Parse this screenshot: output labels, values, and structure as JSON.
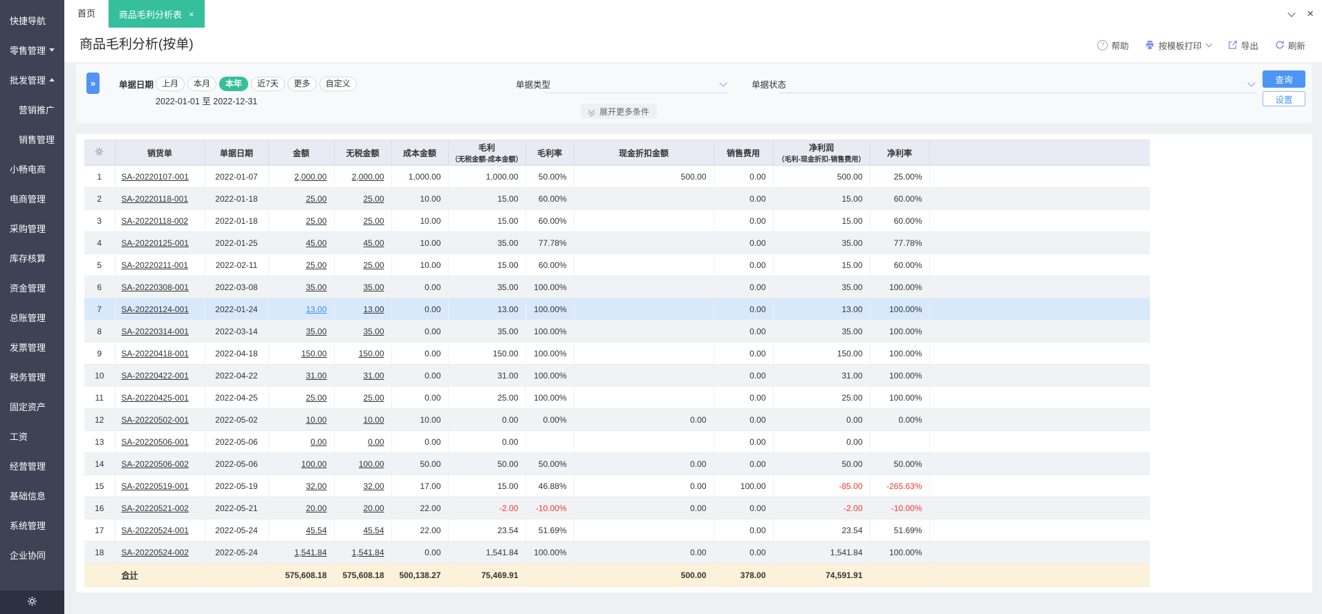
{
  "sidebar": {
    "items": [
      {
        "label": "快捷导航"
      },
      {
        "label": "零售管理",
        "arrow": "down"
      },
      {
        "label": "批发管理",
        "arrow": "up"
      },
      {
        "label": "营销推广",
        "sub": true
      },
      {
        "label": "销售管理",
        "sub": true
      },
      {
        "label": "小畅电商"
      },
      {
        "label": "电商管理"
      },
      {
        "label": "采购管理"
      },
      {
        "label": "库存核算"
      },
      {
        "label": "资金管理"
      },
      {
        "label": "总账管理"
      },
      {
        "label": "发票管理"
      },
      {
        "label": "税务管理"
      },
      {
        "label": "固定资产"
      },
      {
        "label": "工资"
      },
      {
        "label": "经营管理"
      },
      {
        "label": "基础信息"
      },
      {
        "label": "系统管理"
      },
      {
        "label": "企业协同"
      }
    ]
  },
  "tabs": {
    "home": "首页",
    "active": "商品毛利分析表"
  },
  "page": {
    "title": "商品毛利分析(按单)"
  },
  "actions": {
    "help": "帮助",
    "print": "按模板打印",
    "export": "导出",
    "refresh": "刷新"
  },
  "filters": {
    "date_label": "单据日期",
    "date_options": [
      "上月",
      "本月",
      "本年",
      "近7天",
      "更多",
      "自定义"
    ],
    "date_selected": "本年",
    "date_range": "2022-01-01 至 2022-12-31",
    "type_label": "单据类型",
    "status_label": "单据状态",
    "expand_more": "展开更多条件",
    "query_button": "查询",
    "settings_button": "设置"
  },
  "colors": {
    "accent_green": "#35bf9c",
    "accent_blue": "#4b95f4",
    "negative_red": "#f0372e",
    "selected_row": "#d8e9fc",
    "total_row_bg": "#fcf2d9"
  },
  "table": {
    "columns": [
      {
        "title": "",
        "sub": ""
      },
      {
        "title": "销货单",
        "sub": ""
      },
      {
        "title": "单据日期",
        "sub": ""
      },
      {
        "title": "金额",
        "sub": ""
      },
      {
        "title": "无税金额",
        "sub": ""
      },
      {
        "title": "成本金额",
        "sub": ""
      },
      {
        "title": "毛利",
        "sub": "（无税金额-成本金额）"
      },
      {
        "title": "毛利率",
        "sub": ""
      },
      {
        "title": "现金折扣金额",
        "sub": ""
      },
      {
        "title": "销售费用",
        "sub": ""
      },
      {
        "title": "净利润",
        "sub": "（毛利-现金折扣-销售费用）"
      },
      {
        "title": "净利率",
        "sub": ""
      }
    ],
    "rows": [
      {
        "no": "1",
        "order": "SA-20220107-001",
        "date": "2022-01-07",
        "amount": "2,000.00",
        "no_tax": "2,000.00",
        "cost": "1,000.00",
        "gross": "1,000.00",
        "gross_rate": "50.00%",
        "discount": "500.00",
        "expense": "0.00",
        "net": "500.00",
        "net_rate": "25.00%",
        "selected": false
      },
      {
        "no": "2",
        "order": "SA-20220118-001",
        "date": "2022-01-18",
        "amount": "25.00",
        "no_tax": "25.00",
        "cost": "10.00",
        "gross": "15.00",
        "gross_rate": "60.00%",
        "discount": "",
        "expense": "0.00",
        "net": "15.00",
        "net_rate": "60.00%",
        "selected": false
      },
      {
        "no": "3",
        "order": "SA-20220118-002",
        "date": "2022-01-18",
        "amount": "25.00",
        "no_tax": "25.00",
        "cost": "10.00",
        "gross": "15.00",
        "gross_rate": "60.00%",
        "discount": "",
        "expense": "0.00",
        "net": "15.00",
        "net_rate": "60.00%",
        "selected": false
      },
      {
        "no": "4",
        "order": "SA-20220125-001",
        "date": "2022-01-25",
        "amount": "45.00",
        "no_tax": "45.00",
        "cost": "10.00",
        "gross": "35.00",
        "gross_rate": "77.78%",
        "discount": "",
        "expense": "0.00",
        "net": "35.00",
        "net_rate": "77.78%",
        "selected": false
      },
      {
        "no": "5",
        "order": "SA-20220211-001",
        "date": "2022-02-11",
        "amount": "25.00",
        "no_tax": "25.00",
        "cost": "10.00",
        "gross": "15.00",
        "gross_rate": "60.00%",
        "discount": "",
        "expense": "0.00",
        "net": "15.00",
        "net_rate": "60.00%",
        "selected": false
      },
      {
        "no": "6",
        "order": "SA-20220308-001",
        "date": "2022-03-08",
        "amount": "35.00",
        "no_tax": "35.00",
        "cost": "0.00",
        "gross": "35.00",
        "gross_rate": "100.00%",
        "discount": "",
        "expense": "0.00",
        "net": "35.00",
        "net_rate": "100.00%",
        "selected": false
      },
      {
        "no": "7",
        "order": "SA-20220124-001",
        "date": "2022-01-24",
        "amount": "13.00",
        "no_tax": "13.00",
        "cost": "0.00",
        "gross": "13.00",
        "gross_rate": "100.00%",
        "discount": "",
        "expense": "0.00",
        "net": "13.00",
        "net_rate": "100.00%",
        "selected": true
      },
      {
        "no": "8",
        "order": "SA-20220314-001",
        "date": "2022-03-14",
        "amount": "35.00",
        "no_tax": "35.00",
        "cost": "0.00",
        "gross": "35.00",
        "gross_rate": "100.00%",
        "discount": "",
        "expense": "0.00",
        "net": "35.00",
        "net_rate": "100.00%",
        "selected": false
      },
      {
        "no": "9",
        "order": "SA-20220418-001",
        "date": "2022-04-18",
        "amount": "150.00",
        "no_tax": "150.00",
        "cost": "0.00",
        "gross": "150.00",
        "gross_rate": "100.00%",
        "discount": "",
        "expense": "0.00",
        "net": "150.00",
        "net_rate": "100.00%",
        "selected": false
      },
      {
        "no": "10",
        "order": "SA-20220422-001",
        "date": "2022-04-22",
        "amount": "31.00",
        "no_tax": "31.00",
        "cost": "0.00",
        "gross": "31.00",
        "gross_rate": "100.00%",
        "discount": "",
        "expense": "0.00",
        "net": "31.00",
        "net_rate": "100.00%",
        "selected": false
      },
      {
        "no": "11",
        "order": "SA-20220425-001",
        "date": "2022-04-25",
        "amount": "25.00",
        "no_tax": "25.00",
        "cost": "0.00",
        "gross": "25.00",
        "gross_rate": "100.00%",
        "discount": "",
        "expense": "0.00",
        "net": "25.00",
        "net_rate": "100.00%",
        "selected": false
      },
      {
        "no": "12",
        "order": "SA-20220502-001",
        "date": "2022-05-02",
        "amount": "10.00",
        "no_tax": "10.00",
        "cost": "10.00",
        "gross": "0.00",
        "gross_rate": "0.00%",
        "discount": "0.00",
        "expense": "0.00",
        "net": "0.00",
        "net_rate": "0.00%",
        "selected": false
      },
      {
        "no": "13",
        "order": "SA-20220506-001",
        "date": "2022-05-06",
        "amount": "0.00",
        "no_tax": "0.00",
        "cost": "0.00",
        "gross": "0.00",
        "gross_rate": "",
        "discount": "",
        "expense": "0.00",
        "net": "0.00",
        "net_rate": "",
        "selected": false
      },
      {
        "no": "14",
        "order": "SA-20220506-002",
        "date": "2022-05-06",
        "amount": "100.00",
        "no_tax": "100.00",
        "cost": "50.00",
        "gross": "50.00",
        "gross_rate": "50.00%",
        "discount": "0.00",
        "expense": "0.00",
        "net": "50.00",
        "net_rate": "50.00%",
        "selected": false
      },
      {
        "no": "15",
        "order": "SA-20220519-001",
        "date": "2022-05-19",
        "amount": "32.00",
        "no_tax": "32.00",
        "cost": "17.00",
        "gross": "15.00",
        "gross_rate": "46.88%",
        "discount": "0.00",
        "expense": "100.00",
        "net": "-85.00",
        "net_rate": "-265.63%",
        "selected": false
      },
      {
        "no": "16",
        "order": "SA-20220521-002",
        "date": "2022-05-21",
        "amount": "20.00",
        "no_tax": "20.00",
        "cost": "22.00",
        "gross": "-2.00",
        "gross_rate": "-10.00%",
        "discount": "0.00",
        "expense": "0.00",
        "net": "-2.00",
        "net_rate": "-10.00%",
        "selected": false
      },
      {
        "no": "17",
        "order": "SA-20220524-001",
        "date": "2022-05-24",
        "amount": "45.54",
        "no_tax": "45.54",
        "cost": "22.00",
        "gross": "23.54",
        "gross_rate": "51.69%",
        "discount": "",
        "expense": "0.00",
        "net": "23.54",
        "net_rate": "51.69%",
        "selected": false
      },
      {
        "no": "18",
        "order": "SA-20220524-002",
        "date": "2022-05-24",
        "amount": "1,541.84",
        "no_tax": "1,541.84",
        "cost": "0.00",
        "gross": "1,541.84",
        "gross_rate": "100.00%",
        "discount": "0.00",
        "expense": "0.00",
        "net": "1,541.84",
        "net_rate": "100.00%",
        "selected": false
      }
    ],
    "total": {
      "label": "合计",
      "amount": "575,608.18",
      "no_tax": "575,608.18",
      "cost": "500,138.27",
      "gross": "75,469.91",
      "gross_rate": "",
      "discount": "500.00",
      "expense": "378.00",
      "net": "74,591.91",
      "net_rate": ""
    }
  }
}
